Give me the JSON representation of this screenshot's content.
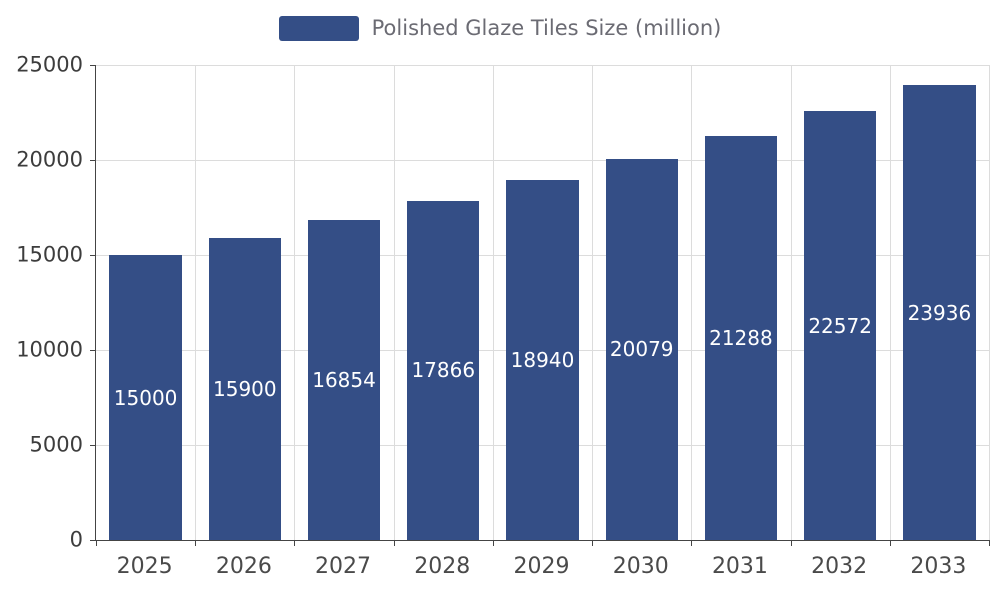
{
  "chart_data": {
    "type": "bar",
    "title": "Polished Glaze Tiles Size (million)",
    "xlabel": "",
    "ylabel": "",
    "categories": [
      "2025",
      "2026",
      "2027",
      "2028",
      "2029",
      "2030",
      "2031",
      "2032",
      "2033"
    ],
    "values": [
      15000,
      15900,
      16854,
      17866,
      18940,
      20079,
      21288,
      22572,
      23936
    ],
    "ylim": [
      0,
      25000
    ],
    "yticks": [
      0,
      5000,
      10000,
      15000,
      20000,
      25000
    ],
    "grid": true,
    "legend_position": "top",
    "colors": {
      "bar": "#344e86",
      "grid": "#dcdcdc",
      "axis": "#444444",
      "tick_text": "#3d3d3d",
      "tick_text_x": "#4a4a4a",
      "value_text": "#ffffff",
      "legend_text": "#6b6b73"
    }
  }
}
